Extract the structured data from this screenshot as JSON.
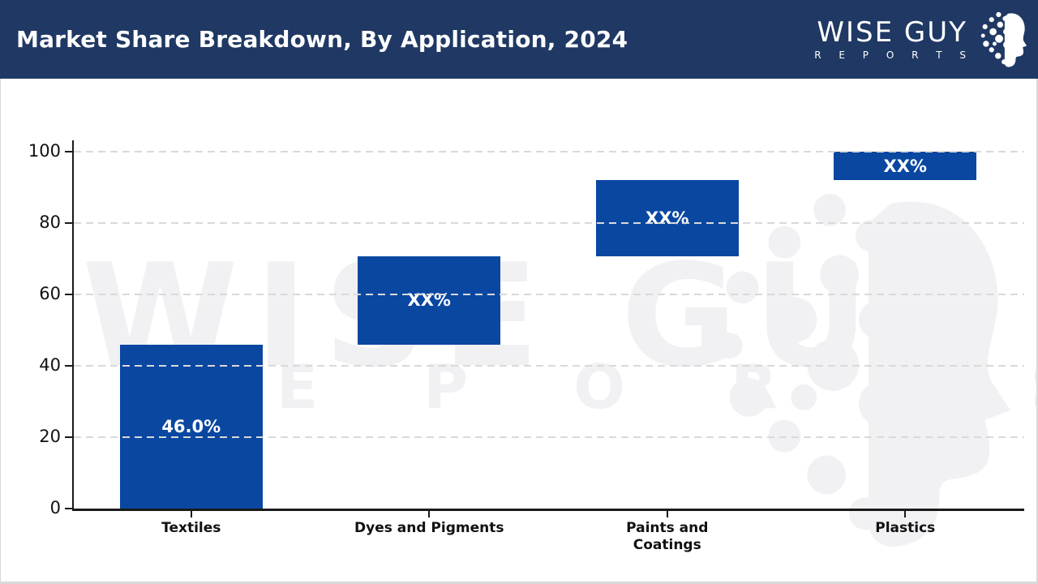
{
  "header": {
    "title": "Market Share Breakdown, By Application, 2024",
    "bg_color": "#1f3864",
    "logo": {
      "line1": "WISE GUY",
      "line2": "R E P O R T S"
    }
  },
  "watermark": {
    "line1": "WISE GUY",
    "line2": "R E P O R T S"
  },
  "chart_data": {
    "type": "bar",
    "subtype": "waterfall-cumulative",
    "title": "Market Share Breakdown, By Application, 2024",
    "categories": [
      "Textiles",
      "Dyes and Pigments",
      "Paints and\nCoatings",
      "Plastics"
    ],
    "segments": [
      {
        "category": "Textiles",
        "label": "46.0%",
        "start": 0,
        "end": 46
      },
      {
        "category": "Dyes and Pigments",
        "label": "XX%",
        "start": 46,
        "end": 70.6
      },
      {
        "category": "Paints and Coatings",
        "label": "XX%",
        "start": 70.6,
        "end": 92
      },
      {
        "category": "Plastics",
        "label": "XX%",
        "start": 92,
        "end": 100
      }
    ],
    "xlabel": "",
    "ylabel": "",
    "ylim": [
      0,
      100
    ],
    "yticks": [
      0,
      20,
      40,
      60,
      80,
      100
    ],
    "ytick_labels": [
      "0",
      "20",
      "40",
      "60",
      "80",
      "100"
    ],
    "grid": "horizontal-dashed",
    "bar_color": "#0a47a1",
    "bar_label_color": "#ffffff",
    "legend": "none"
  }
}
